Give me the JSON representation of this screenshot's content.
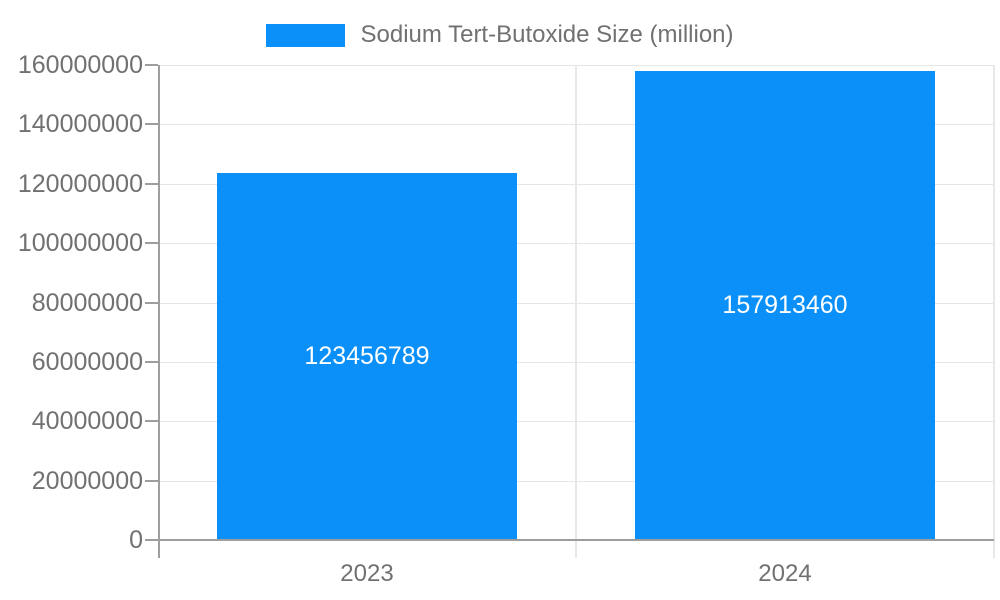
{
  "chart_data": {
    "type": "bar",
    "legend": {
      "label": "Sodium Tert-Butoxide Size (million)",
      "position": "top-center"
    },
    "categories": [
      "2023",
      "2024"
    ],
    "series": [
      {
        "name": "Sodium Tert-Butoxide Size (million)",
        "values": [
          123456789,
          157913460
        ]
      }
    ],
    "value_labels": [
      "123456789",
      "157913460"
    ],
    "xlabel": "",
    "ylabel": "",
    "ylim": [
      0,
      160000000
    ],
    "yticks": [
      0,
      20000000,
      40000000,
      60000000,
      80000000,
      100000000,
      120000000,
      140000000,
      160000000
    ],
    "grid": {
      "horizontal": true,
      "vertical_category_separators": true
    },
    "legend_visible": true,
    "colors": {
      "bar": "#0a90f8",
      "gridline": "#e6e6e6",
      "axis": "#9e9e9e",
      "text": "#717171",
      "value_label": "#ffffff",
      "background": "#ffffff"
    }
  }
}
